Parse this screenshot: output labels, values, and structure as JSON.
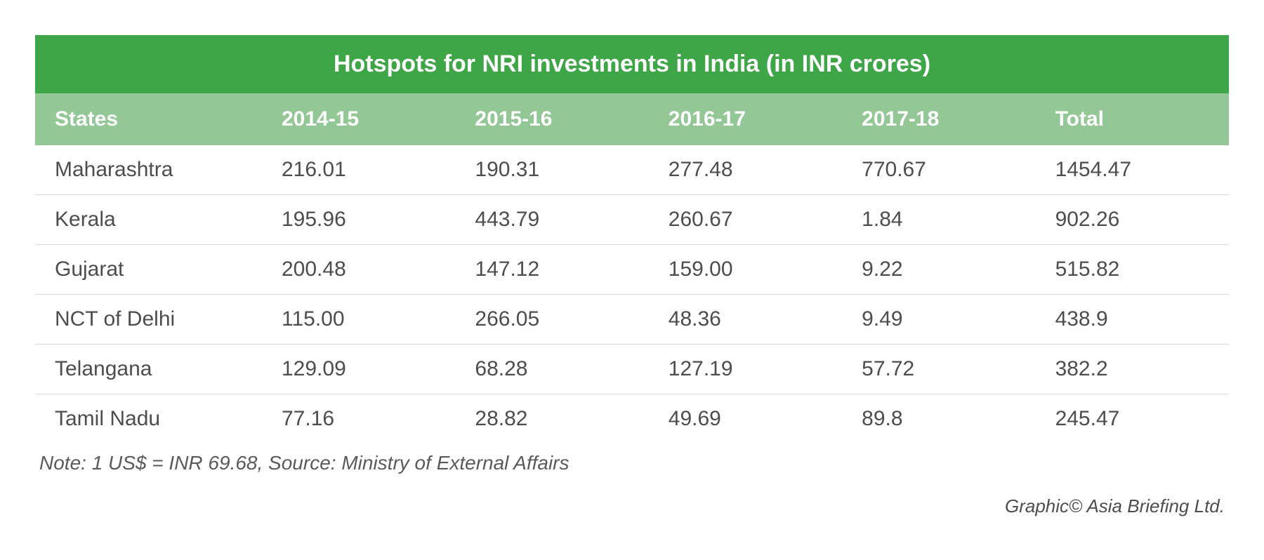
{
  "table": {
    "type": "table",
    "title": "Hotspots for NRI investments in India (in INR crores)",
    "columns": [
      "States",
      "2014-15",
      "2015-16",
      "2016-17",
      "2017-18",
      "Total"
    ],
    "rows": [
      [
        "Maharashtra",
        "216.01",
        "190.31",
        "277.48",
        "770.67",
        "1454.47"
      ],
      [
        "Kerala",
        "195.96",
        "443.79",
        "260.67",
        "1.84",
        "902.26"
      ],
      [
        "Gujarat",
        "200.48",
        "147.12",
        "159.00",
        "9.22",
        "515.82"
      ],
      [
        "NCT of Delhi",
        "115.00",
        "266.05",
        "48.36",
        "9.49",
        "438.9"
      ],
      [
        "Telangana",
        "129.09",
        "68.28",
        "127.19",
        "57.72",
        "382.2"
      ],
      [
        "Tamil Nadu",
        "77.16",
        "28.82",
        "49.69",
        "89.8",
        "245.47"
      ]
    ],
    "note": "Note: 1 US$ = INR 69.68, Source: Ministry of External Affairs",
    "credit": "Graphic© Asia Briefing Ltd.",
    "style": {
      "title_bg": "#3fa648",
      "title_color": "#ffffff",
      "title_fontsize": 34,
      "header_bg": "#94c796",
      "header_color": "#ffffff",
      "header_fontsize": 30,
      "cell_color": "#4d4d4d",
      "cell_fontsize": 30,
      "row_border_color": "#d9d9d9",
      "note_color": "#5a5a5a",
      "note_fontsize": 28,
      "credit_color": "#4d4d4d",
      "credit_fontsize": 26,
      "background_color": "#ffffff",
      "watermark_color": "#efefef"
    }
  }
}
